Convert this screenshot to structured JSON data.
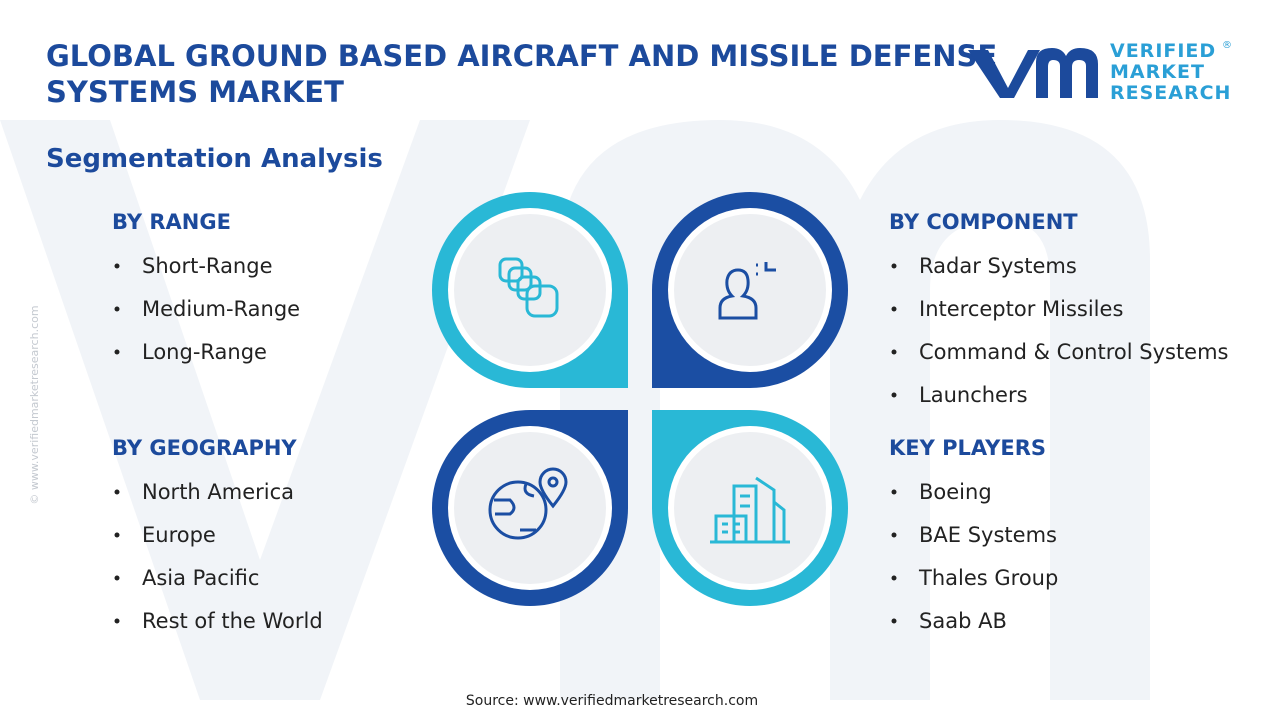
{
  "header": {
    "title_line1": "GLOBAL GROUND BASED AIRCRAFT AND MISSILE DEFENSE",
    "title_line2": "SYSTEMS MARKET",
    "subtitle": "Segmentation Analysis"
  },
  "logo": {
    "line1": "VERIFIED",
    "line2": "MARKET",
    "line3": "RESEARCH",
    "registered": "®"
  },
  "sections": [
    {
      "heading": "BY RANGE",
      "items": [
        "Short-Range",
        "Medium-Range",
        "Long-Range"
      ]
    },
    {
      "heading": "BY COMPONENT",
      "items": [
        "Radar Systems",
        "Interceptor Missiles",
        "Command & Control Systems",
        "Launchers"
      ]
    },
    {
      "heading": "BY GEOGRAPHY",
      "items": [
        "North America",
        "Europe",
        "Asia Pacific",
        "Rest of the World"
      ]
    },
    {
      "heading": "KEY PLAYERS",
      "items": [
        "Boeing",
        "BAE Systems",
        "Thales Group",
        "Saab AB"
      ]
    }
  ],
  "side_text": "© www.verifiedmarketresearch.com",
  "source": "Source: www.verifiedmarketresearch.com"
}
